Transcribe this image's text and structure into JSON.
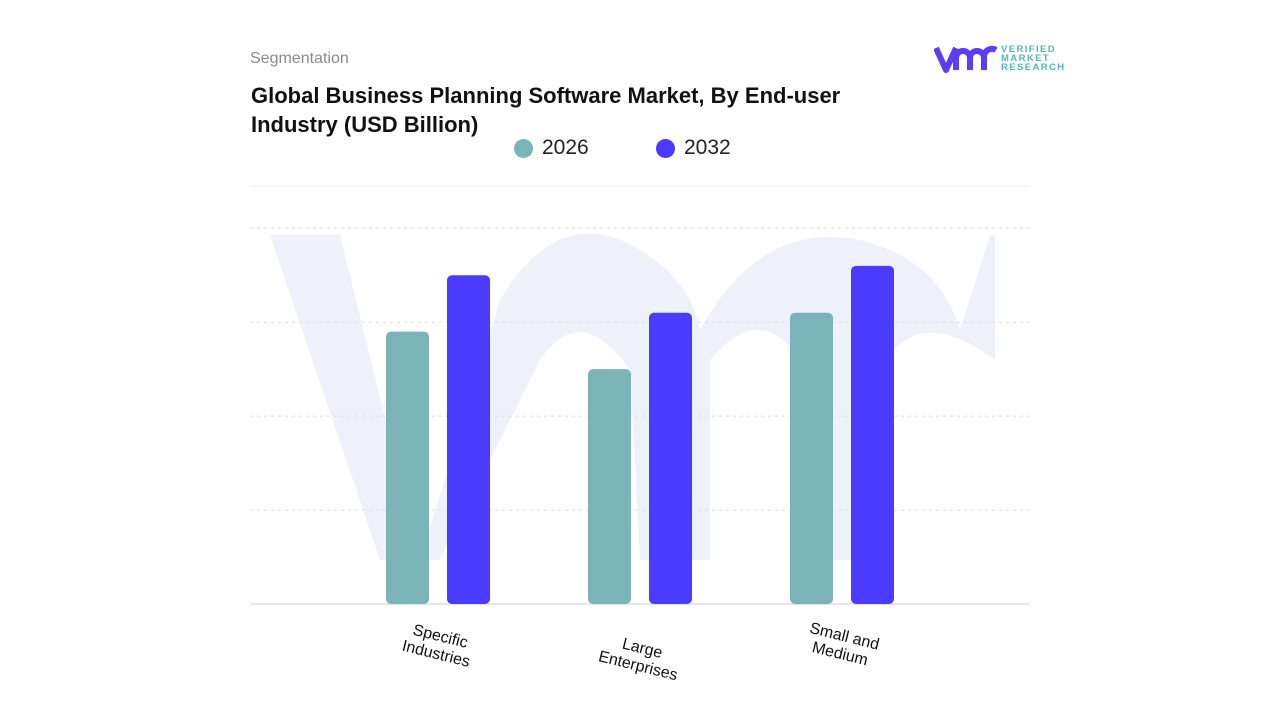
{
  "header": {
    "section": "Segmentation",
    "title": "Global Business Planning Software Market, By End-user Industry (USD Billion)"
  },
  "logo": {
    "text": [
      "VERIFIED",
      "MARKET",
      "RESEARCH"
    ],
    "mark": "vmr"
  },
  "colors": {
    "2026": "#7ab4b8",
    "2032": "#4b3bff",
    "watermark": "#eef1fa"
  },
  "chart_data": {
    "type": "bar",
    "title": "Global Business Planning Software Market, By End-user Industry (USD Billion)",
    "categories": [
      "Specific Industries",
      "Large Enterprises",
      "Small and Medium"
    ],
    "category_lines": [
      [
        "Specific",
        "Industries"
      ],
      [
        "Large",
        "Enterprises"
      ],
      [
        "Small and",
        "Medium"
      ]
    ],
    "series": [
      {
        "name": "2026",
        "values": [
          2.9,
          2.5,
          3.1
        ]
      },
      {
        "name": "2032",
        "values": [
          3.5,
          3.1,
          3.6
        ]
      }
    ],
    "xlabel": "",
    "ylabel": "",
    "ylim": [
      0,
      4.45
    ],
    "y_ticks_labeled": false,
    "grid": "horizontal dashed",
    "legend": "top-center"
  }
}
